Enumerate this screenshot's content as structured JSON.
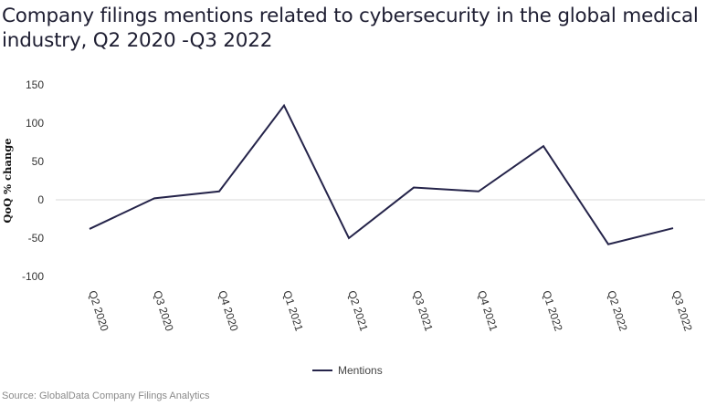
{
  "title": "Company filings mentions related to cybersecurity in the global medical industry, Q2 2020 -Q3 2022",
  "source": "Source: GlobalData Company Filings Analytics",
  "colors": {
    "line": "#25244a",
    "zero_line": "#d9d9d9",
    "title": "#1e1e32"
  },
  "chart_data": {
    "type": "line",
    "title": "Company filings mentions related to cybersecurity in the global medical industry, Q2 2020 -Q3 2022",
    "xlabel": "",
    "ylabel": "QoQ % change",
    "categories": [
      "Q2 2020",
      "Q3 2020",
      "Q4 2020",
      "Q1 2021",
      "Q2 2021",
      "Q3 2021",
      "Q4 2021",
      "Q1 2022",
      "Q2 2022",
      "Q3 2022"
    ],
    "series": [
      {
        "name": "Mentions",
        "values": [
          -38,
          2,
          11,
          123,
          -50,
          16,
          11,
          70,
          -58,
          -37
        ]
      }
    ],
    "ylim": [
      -100,
      150
    ],
    "yticks": [
      150,
      100,
      50,
      0,
      -50,
      -100
    ],
    "ytick_labels": [
      "150",
      "100",
      "50",
      "0",
      "-50",
      "-100"
    ],
    "grid": false,
    "zero_line": true,
    "legend": {
      "position": "bottom-center",
      "entries": [
        "Mentions"
      ]
    }
  }
}
